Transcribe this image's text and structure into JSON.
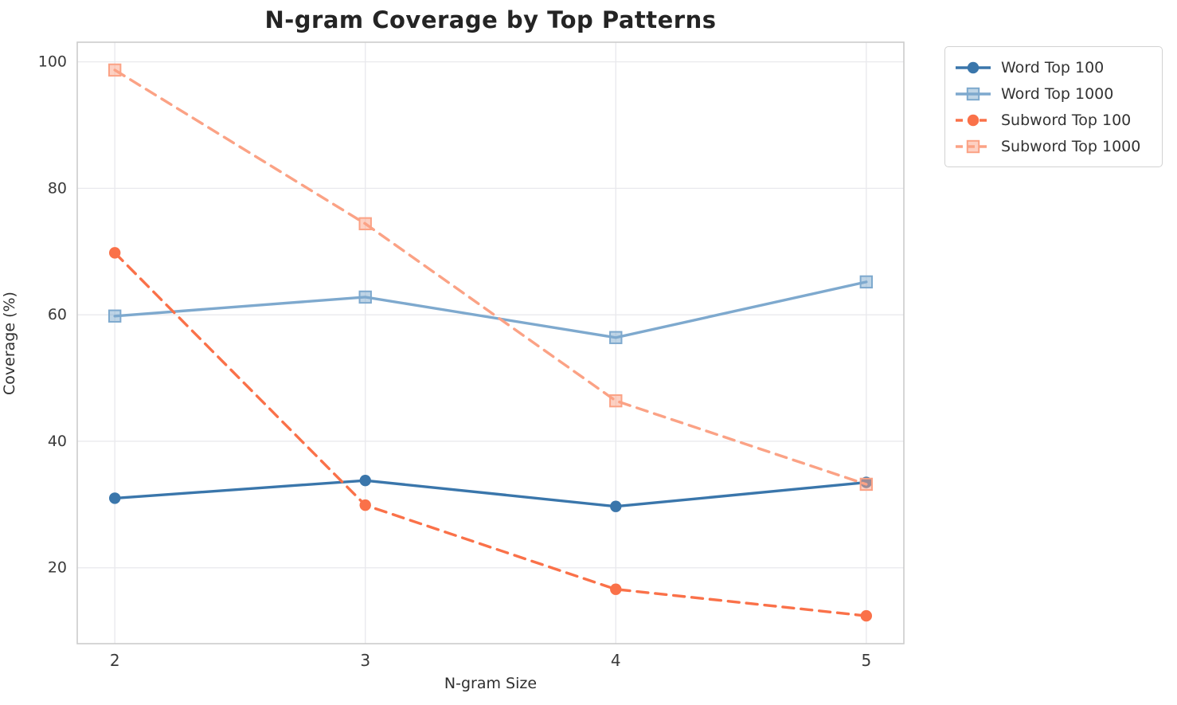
{
  "title": "N-gram Coverage by Top Patterns",
  "chart_data": {
    "type": "line",
    "x": [
      2,
      3,
      4,
      5
    ],
    "xlabel": "N-gram Size",
    "ylabel": "Coverage (%)",
    "xticks": [
      2,
      3,
      4,
      5
    ],
    "yticks": [
      20,
      40,
      60,
      80,
      100
    ],
    "xlim": [
      1.85,
      5.15
    ],
    "ylim": [
      8.0,
      103.1
    ],
    "grid": true,
    "legend_position": "outside-top-right",
    "series": [
      {
        "name": "Word Top 100",
        "color": "#3a76ab",
        "marker": "circle",
        "line": "solid",
        "values": [
          31.0,
          33.8,
          29.7,
          33.5
        ]
      },
      {
        "name": "Word Top 1000",
        "color": "#7ea9ce",
        "marker": "square",
        "line": "solid",
        "values": [
          59.8,
          62.8,
          56.4,
          65.2
        ]
      },
      {
        "name": "Subword Top 100",
        "color": "#fa7149",
        "marker": "circle",
        "line": "dashed",
        "values": [
          69.8,
          29.9,
          16.6,
          12.4
        ]
      },
      {
        "name": "Subword Top 1000",
        "color": "#fba285",
        "marker": "square",
        "line": "dashed",
        "values": [
          98.7,
          74.4,
          46.4,
          33.2
        ]
      }
    ],
    "colors": {
      "grid": "#e9e9ed",
      "spine": "#cccccc",
      "tick_label": "#3a3a3a"
    }
  }
}
